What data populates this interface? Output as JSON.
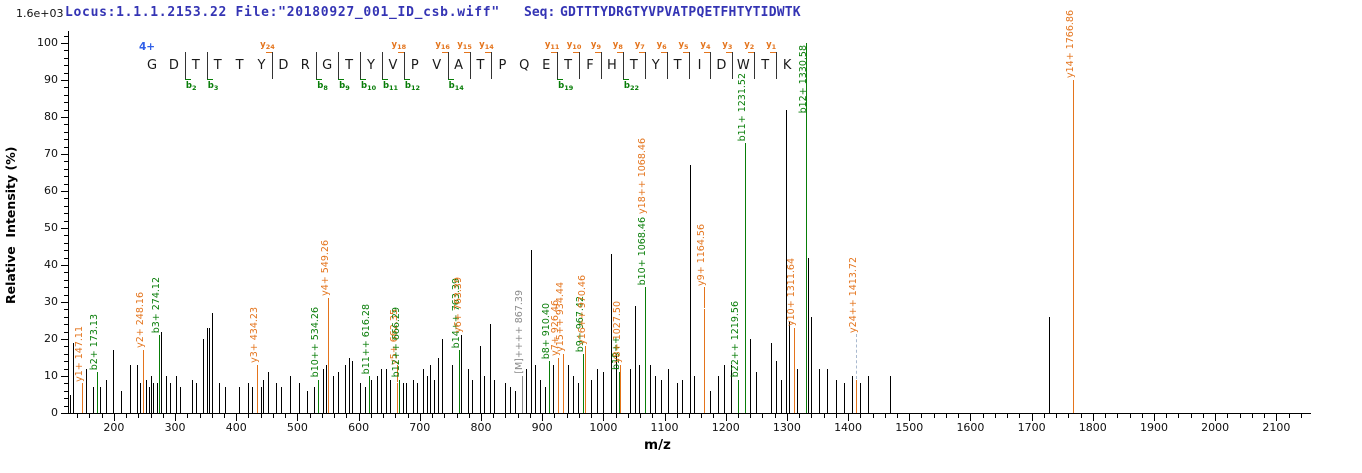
{
  "header": {
    "locus_file": "Locus:1.1.1.2153.22 File:\"20180927_001_ID_csb.wiff\"",
    "seq_label": "Seq:",
    "sequence": "GDTTTYDRGTYVPVATPQETFHTYTIDWTK"
  },
  "axes": {
    "y_scale_note": "1.6e+03",
    "y_title": "Relative  Intensity (%)",
    "x_title": "m/z"
  },
  "peptide_map": {
    "charge_label": "4+",
    "residues": "GDTTTYDRGTYVPVATPQETFHTYTIDWTK",
    "y_ions": [
      24,
      18,
      16,
      15,
      14,
      11,
      10,
      9,
      8,
      7,
      6,
      5,
      4,
      3,
      2,
      1
    ],
    "b_ions": [
      2,
      3,
      8,
      9,
      10,
      11,
      12,
      14,
      19,
      22
    ]
  },
  "chart_data": {
    "type": "bar",
    "title": "Locus:1.1.1.2153.22 File:\"20180927_001_ID_csb.wiff\"  Seq: GDTTTYDRGTYVPVATPQETFHTYTIDWTK",
    "xlabel": "m/z",
    "ylabel": "Relative Intensity (%)",
    "xlim": [
      125,
      2155
    ],
    "ylim": [
      0,
      102
    ],
    "x_ticks": {
      "label_start": 200,
      "label_end": 2100,
      "step": 100,
      "minor_step": 20
    },
    "y_ticks": {
      "label_start": 0,
      "label_end": 100,
      "step": 10,
      "minor_step": 2
    },
    "absolute_intensity_max": "1.6e+03",
    "grid": false,
    "legend": "none",
    "series_colors": {
      "k": "#000000",
      "y": "#e4741c",
      "b": "#087d08",
      "M": "#8a8a8a"
    },
    "color_meaning": {
      "k": "unassigned-peak",
      "y": "y-ion",
      "b": "b-ion",
      "M": "precursor"
    },
    "connector_dash_color": "#a9b9cf",
    "peaks": [
      {
        "mz": 128,
        "i": 5,
        "c": "k"
      },
      {
        "mz": 133,
        "i": 19,
        "c": "k"
      },
      {
        "mz": 147.11,
        "i": 8,
        "c": "y",
        "label": "y1+ 147.11"
      },
      {
        "mz": 155,
        "i": 12,
        "c": "k"
      },
      {
        "mz": 166,
        "i": 7,
        "c": "k"
      },
      {
        "mz": 173.13,
        "i": 11,
        "c": "b",
        "label": "b2+ 173.13"
      },
      {
        "mz": 178,
        "i": 7,
        "c": "k"
      },
      {
        "mz": 187,
        "i": 9,
        "c": "k"
      },
      {
        "mz": 199,
        "i": 17,
        "c": "k"
      },
      {
        "mz": 212,
        "i": 6,
        "c": "k"
      },
      {
        "mz": 226,
        "i": 13,
        "c": "k"
      },
      {
        "mz": 238,
        "i": 13,
        "c": "k"
      },
      {
        "mz": 243,
        "i": 8,
        "c": "k"
      },
      {
        "mz": 248.16,
        "i": 17,
        "c": "y",
        "label": "y2+ 248.16"
      },
      {
        "mz": 253,
        "i": 9,
        "c": "k"
      },
      {
        "mz": 257,
        "i": 7,
        "c": "k"
      },
      {
        "mz": 260,
        "i": 10,
        "c": "k"
      },
      {
        "mz": 264,
        "i": 8,
        "c": "k"
      },
      {
        "mz": 270,
        "i": 8,
        "c": "k"
      },
      {
        "mz": 274.12,
        "i": 21,
        "c": "b",
        "label": "b3+ 274.12"
      },
      {
        "mz": 277,
        "i": 22,
        "c": "k"
      },
      {
        "mz": 285,
        "i": 10,
        "c": "k"
      },
      {
        "mz": 291,
        "i": 8,
        "c": "k"
      },
      {
        "mz": 301,
        "i": 10,
        "c": "k"
      },
      {
        "mz": 308,
        "i": 7,
        "c": "k"
      },
      {
        "mz": 327,
        "i": 9,
        "c": "k"
      },
      {
        "mz": 334,
        "i": 8,
        "c": "k"
      },
      {
        "mz": 345,
        "i": 20,
        "c": "k"
      },
      {
        "mz": 352,
        "i": 23,
        "c": "k"
      },
      {
        "mz": 355,
        "i": 23,
        "c": "k"
      },
      {
        "mz": 361,
        "i": 27,
        "c": "k"
      },
      {
        "mz": 372,
        "i": 8,
        "c": "k"
      },
      {
        "mz": 382,
        "i": 7,
        "c": "k"
      },
      {
        "mz": 404,
        "i": 7,
        "c": "k"
      },
      {
        "mz": 419,
        "i": 8,
        "c": "k"
      },
      {
        "mz": 426,
        "i": 7,
        "c": "k"
      },
      {
        "mz": 434.23,
        "i": 13,
        "c": "y",
        "label": "y3+ 434.23"
      },
      {
        "mz": 440,
        "i": 7,
        "c": "k"
      },
      {
        "mz": 444,
        "i": 9,
        "c": "k"
      },
      {
        "mz": 452,
        "i": 11,
        "c": "k"
      },
      {
        "mz": 465,
        "i": 8,
        "c": "k"
      },
      {
        "mz": 473,
        "i": 7,
        "c": "k"
      },
      {
        "mz": 488,
        "i": 10,
        "c": "k"
      },
      {
        "mz": 502,
        "i": 8,
        "c": "k"
      },
      {
        "mz": 516,
        "i": 6,
        "c": "k"
      },
      {
        "mz": 527,
        "i": 7,
        "c": "k"
      },
      {
        "mz": 534.26,
        "i": 9,
        "c": "b",
        "label": "b10++ 534.26"
      },
      {
        "mz": 542,
        "i": 12,
        "c": "k"
      },
      {
        "mz": 546,
        "i": 13,
        "c": "k"
      },
      {
        "mz": 549.26,
        "i": 31,
        "c": "y",
        "label": "y4+ 549.26"
      },
      {
        "mz": 558,
        "i": 10,
        "c": "k"
      },
      {
        "mz": 566,
        "i": 11,
        "c": "k"
      },
      {
        "mz": 578,
        "i": 13,
        "c": "k"
      },
      {
        "mz": 584,
        "i": 15,
        "c": "k"
      },
      {
        "mz": 590,
        "i": 14,
        "c": "k"
      },
      {
        "mz": 602,
        "i": 8,
        "c": "k"
      },
      {
        "mz": 610,
        "i": 7,
        "c": "k"
      },
      {
        "mz": 616.28,
        "i": 10,
        "c": "b",
        "label": "b11++ 616.28"
      },
      {
        "mz": 621,
        "i": 9,
        "c": "k"
      },
      {
        "mz": 630,
        "i": 10,
        "c": "k"
      },
      {
        "mz": 637,
        "i": 12,
        "c": "k"
      },
      {
        "mz": 644,
        "i": 12,
        "c": "k"
      },
      {
        "mz": 651,
        "i": 9,
        "c": "k"
      },
      {
        "mz": 662.35,
        "i": 8,
        "c": "y",
        "label": "y5+ 662.35",
        "conn": 18
      },
      {
        "mz": 666.29,
        "i": 9,
        "c": "b",
        "label": "b12++ 666.29"
      },
      {
        "mz": 673,
        "i": 8,
        "c": "k"
      },
      {
        "mz": 677,
        "i": 8,
        "c": "k"
      },
      {
        "mz": 689,
        "i": 9,
        "c": "k"
      },
      {
        "mz": 695,
        "i": 8,
        "c": "k"
      },
      {
        "mz": 705,
        "i": 12,
        "c": "k"
      },
      {
        "mz": 711,
        "i": 10,
        "c": "k"
      },
      {
        "mz": 717,
        "i": 13,
        "c": "k"
      },
      {
        "mz": 723,
        "i": 9,
        "c": "k"
      },
      {
        "mz": 730,
        "i": 15,
        "c": "k"
      },
      {
        "mz": 737,
        "i": 20,
        "c": "k"
      },
      {
        "mz": 752,
        "i": 13,
        "c": "k"
      },
      {
        "mz": 763.39,
        "i": 17,
        "c": "b",
        "label": "b14++ 763.39"
      },
      {
        "mz": 768,
        "i": 21,
        "c": "k",
        "label": "y6+ 763.39",
        "lc": "y"
      },
      {
        "mz": 779,
        "i": 12,
        "c": "k"
      },
      {
        "mz": 786,
        "i": 9,
        "c": "k"
      },
      {
        "mz": 798,
        "i": 18,
        "c": "k"
      },
      {
        "mz": 805,
        "i": 10,
        "c": "k"
      },
      {
        "mz": 814,
        "i": 24,
        "c": "k"
      },
      {
        "mz": 822,
        "i": 9,
        "c": "k"
      },
      {
        "mz": 839,
        "i": 8,
        "c": "k"
      },
      {
        "mz": 847,
        "i": 7,
        "c": "k"
      },
      {
        "mz": 856,
        "i": 6,
        "c": "k"
      },
      {
        "mz": 867.39,
        "i": 10,
        "c": "M",
        "label": "[M]++++ 867.39"
      },
      {
        "mz": 874,
        "i": 12,
        "c": "k"
      },
      {
        "mz": 881,
        "i": 44,
        "c": "k"
      },
      {
        "mz": 888,
        "i": 13,
        "c": "k"
      },
      {
        "mz": 896,
        "i": 9,
        "c": "k"
      },
      {
        "mz": 904,
        "i": 7,
        "c": "k"
      },
      {
        "mz": 910.4,
        "i": 14,
        "c": "b",
        "label": "b8+ 910.40"
      },
      {
        "mz": 918,
        "i": 13,
        "c": "k"
      },
      {
        "mz": 926.46,
        "i": 15,
        "c": "y",
        "label": "y7+ 926.46"
      },
      {
        "mz": 934.44,
        "i": 16,
        "c": "y",
        "label": "y15++ 934.44"
      },
      {
        "mz": 942,
        "i": 13,
        "c": "k"
      },
      {
        "mz": 950,
        "i": 10,
        "c": "k"
      },
      {
        "mz": 958,
        "i": 8,
        "c": "k"
      },
      {
        "mz": 967.42,
        "i": 16,
        "c": "b",
        "label": "b9+ 967.42"
      },
      {
        "mz": 970.46,
        "i": 18,
        "c": "y",
        "label": "y16++ 970.46"
      },
      {
        "mz": 980,
        "i": 9,
        "c": "k"
      },
      {
        "mz": 989,
        "i": 12,
        "c": "k"
      },
      {
        "mz": 1000,
        "i": 11,
        "c": "k"
      },
      {
        "mz": 1012,
        "i": 43,
        "c": "k"
      },
      {
        "mz": 1021,
        "i": 16,
        "c": "k"
      },
      {
        "mz": 1024.9,
        "i": 11,
        "c": "b",
        "label": "b19++"
      },
      {
        "mz": 1027.5,
        "i": 13,
        "c": "y",
        "label": "y8+ 1027.50"
      },
      {
        "mz": 1043,
        "i": 12,
        "c": "k"
      },
      {
        "mz": 1051,
        "i": 29,
        "c": "k"
      },
      {
        "mz": 1059,
        "i": 13,
        "c": "k"
      },
      {
        "mz": 1068.46,
        "i": 34,
        "c": "b",
        "label": "b10+ 1068.46",
        "label2": "y18++ 1068.46",
        "l2c": "y"
      },
      {
        "mz": 1076,
        "i": 13,
        "c": "k"
      },
      {
        "mz": 1084,
        "i": 10,
        "c": "k"
      },
      {
        "mz": 1095,
        "i": 9,
        "c": "k"
      },
      {
        "mz": 1105,
        "i": 12,
        "c": "k"
      },
      {
        "mz": 1120,
        "i": 8,
        "c": "k"
      },
      {
        "mz": 1128,
        "i": 9,
        "c": "k"
      },
      {
        "mz": 1141,
        "i": 67,
        "c": "k"
      },
      {
        "mz": 1148,
        "i": 10,
        "c": "k"
      },
      {
        "mz": 1164.56,
        "i": 28,
        "c": "y",
        "label": "y9+ 1164.56",
        "conn": 22
      },
      {
        "mz": 1174,
        "i": 6,
        "c": "k"
      },
      {
        "mz": 1187,
        "i": 10,
        "c": "k"
      },
      {
        "mz": 1198,
        "i": 13,
        "c": "k"
      },
      {
        "mz": 1208,
        "i": 13,
        "c": "k"
      },
      {
        "mz": 1219.56,
        "i": 9,
        "c": "b",
        "label": "b22++ 1219.56"
      },
      {
        "mz": 1231.52,
        "i": 73,
        "c": "b",
        "label": "b11+ 1231.52"
      },
      {
        "mz": 1240,
        "i": 20,
        "c": "k"
      },
      {
        "mz": 1250,
        "i": 11,
        "c": "k"
      },
      {
        "mz": 1274,
        "i": 19,
        "c": "k"
      },
      {
        "mz": 1282,
        "i": 14,
        "c": "k"
      },
      {
        "mz": 1290,
        "i": 9,
        "c": "k"
      },
      {
        "mz": 1298,
        "i": 82,
        "c": "k"
      },
      {
        "mz": 1304,
        "i": 25,
        "c": "k"
      },
      {
        "mz": 1311.64,
        "i": 23,
        "c": "y",
        "label": "y10+ 1311.64"
      },
      {
        "mz": 1316,
        "i": 12,
        "c": "k"
      },
      {
        "mz": 1330.58,
        "i": 100,
        "c": "b",
        "label": "b12+ 1330.58"
      },
      {
        "mz": 1334,
        "i": 42,
        "c": "k"
      },
      {
        "mz": 1339,
        "i": 26,
        "c": "k"
      },
      {
        "mz": 1353,
        "i": 12,
        "c": "k"
      },
      {
        "mz": 1365,
        "i": 12,
        "c": "k"
      },
      {
        "mz": 1380,
        "i": 9,
        "c": "k"
      },
      {
        "mz": 1394,
        "i": 8,
        "c": "k"
      },
      {
        "mz": 1406,
        "i": 10,
        "c": "k"
      },
      {
        "mz": 1413.72,
        "i": 9,
        "c": "y",
        "label": "y24++ 1413.72",
        "conn": 46,
        "dash": true
      },
      {
        "mz": 1419,
        "i": 8,
        "c": "k"
      },
      {
        "mz": 1432,
        "i": 10,
        "c": "k"
      },
      {
        "mz": 1469,
        "i": 10,
        "c": "k"
      },
      {
        "mz": 1729,
        "i": 26,
        "c": "k"
      },
      {
        "mz": 1766.86,
        "i": 90,
        "c": "y",
        "label": "y14+ 1766.86"
      }
    ]
  }
}
